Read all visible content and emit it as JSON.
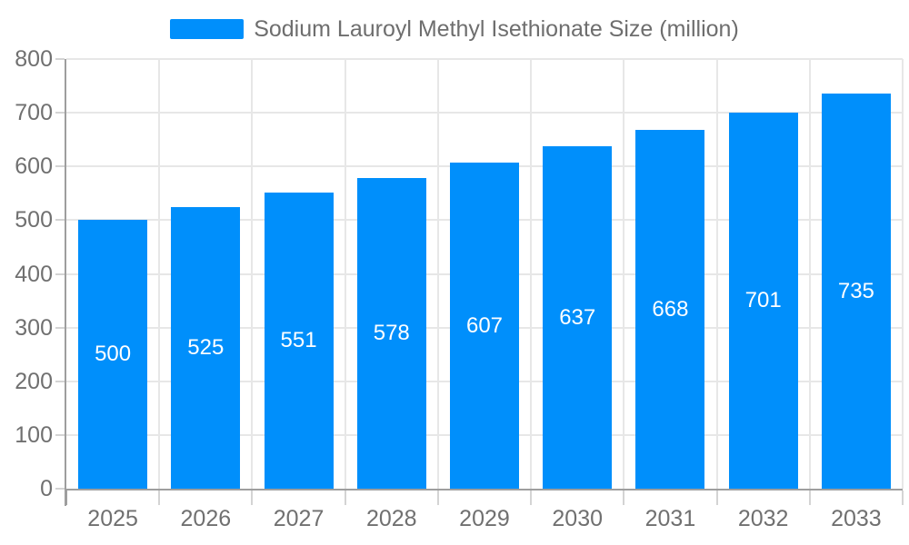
{
  "chart_data": {
    "type": "bar",
    "title": "",
    "legend_position": "top",
    "grid": "on",
    "categories": [
      "2025",
      "2026",
      "2027",
      "2028",
      "2029",
      "2030",
      "2031",
      "2032",
      "2033"
    ],
    "series": [
      {
        "name": "Sodium Lauroyl Methyl Isethionate Size (million)",
        "values": [
          500,
          525,
          551,
          578,
          607,
          637,
          668,
          701,
          735
        ]
      }
    ],
    "xlabel": "",
    "ylabel": "",
    "ylim": [
      0,
      800
    ],
    "ytick_step": 100,
    "data_labels": "inside-center",
    "colors": {
      "bar": "#008FFB",
      "bar_label": "#FFFFFF",
      "axis_line": "#9E9E9E",
      "tick": "#D4D4D4",
      "gridline": "#E7E7E7",
      "axis_text": "#707070",
      "legend_text": "#6E6E6E",
      "background": "#FFFFFF"
    }
  }
}
